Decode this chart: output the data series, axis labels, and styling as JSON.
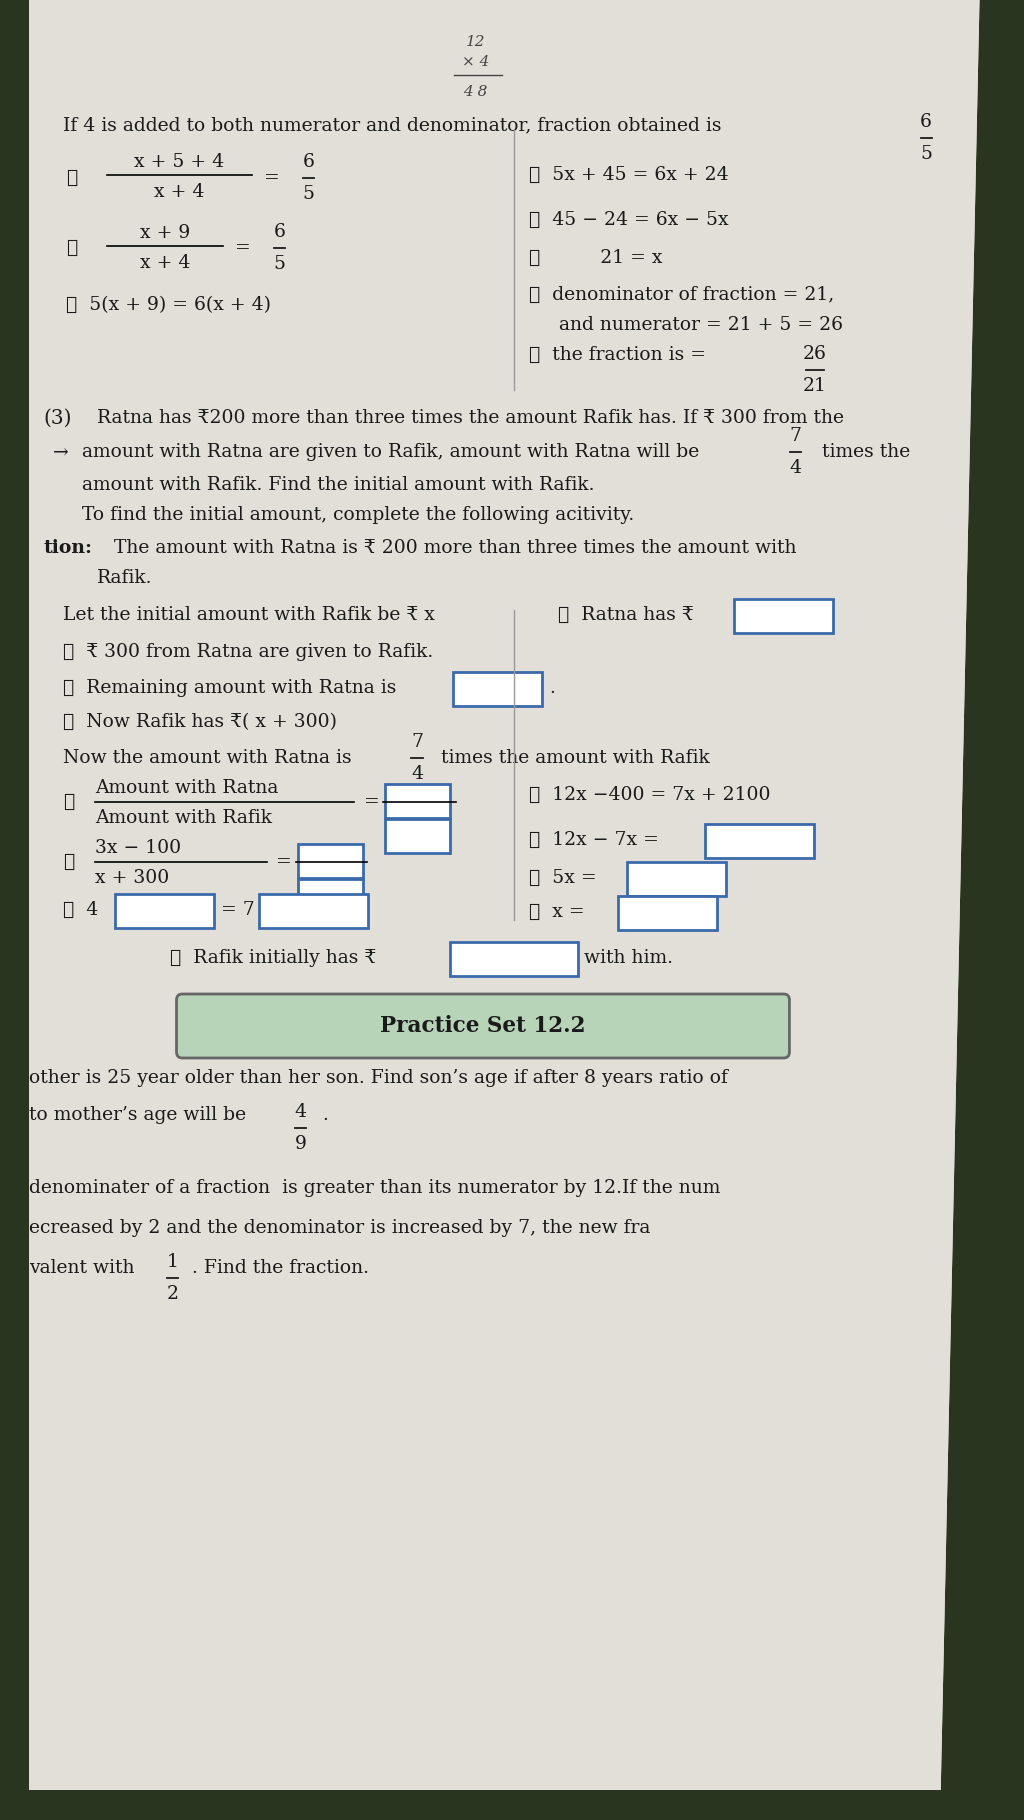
{
  "fig_w": 10.24,
  "fig_h": 18.2,
  "dpi": 100,
  "bg_dark": "#2a3520",
  "page_color": "#dddbd4",
  "page_color2": "#e8e6df",
  "text_color": "#1a1a1a",
  "box_edge_color": "#3a6aaa",
  "fs_main": 13.5,
  "fs_small": 11.5,
  "fs_hand": 11,
  "practice_bg": "#b8d4b8",
  "practice_edge": "#666666",
  "divider_color": "#888888",
  "hand_color": "#444444",
  "title_line": "If 4 is added to both numerator and denominator, fraction obtained is",
  "left_steps": {
    "step1_num": "x + 5 + 4",
    "step1_den": "x + 4",
    "step1_rhs_num": "6",
    "step1_rhs_den": "5",
    "step2_num": "x + 9",
    "step2_den": "x + 4",
    "step2_rhs_num": "6",
    "step2_rhs_den": "5",
    "step3": "∴  5(x + 9) = 6(x + 4)"
  },
  "right_steps": [
    "∴  5x + 45 = 6x + 24",
    "∴  45 − 24 = 6x − 5x",
    "∴          21 = x",
    "∴  denominator of fraction = 21,",
    "     and numerator = 21 + 5 = 26",
    "∴  the fraction is ="
  ],
  "frac_final_num": "26",
  "frac_final_den": "21",
  "sec3_line1": "(3) Ratna has ₹200 more than three times the amount Rafik has. If ₹ 300 from the",
  "sec3_line2": "amount with Ratna are given to Rafik, amount with Ratna will be",
  "sec3_frac_num": "7",
  "sec3_frac_den": "4",
  "sec3_line2b": "times the",
  "sec3_line3": "amount with Rafik. Find the initial amount with Rafik.",
  "sec3_line4": "To find the initial amount, complete the following acitivity.",
  "sec3_tion": "tion:",
  "sec3_line5": "The amount with Ratna is ₹ 200 more than three times the amount with",
  "sec3_line6": "Rafik.",
  "let_line": "Let the initial amount with Rafik be ₹ x",
  "ratna_has": "∴  Ratna has ₹",
  "rs300_line": "∴  ₹ 300 from Ratna are given to Rafik.",
  "remaining_line": "∴  Remaining amount with Ratna is",
  "now_rafik_line": "∴  Now Rafik has ₹( x + 300)",
  "now_amount_line1": "Now the amount with Ratna is",
  "now_frac_num": "7",
  "now_frac_den": "4",
  "now_amount_line2": "times the amount with Rafik",
  "amt_ratna": "Amount with Ratna",
  "amt_rafik": "Amount with Rafik",
  "eq_3x100_num": "3x − 100",
  "eq_3x100_den": "x + 300",
  "r_eq1": "∴  12x −400 = 7x + 2100",
  "r_eq2": "∴  12x − 7x =",
  "r_eq3": "∴  5x =",
  "r_eq4": "∴  x =",
  "therefore4": "∴  4",
  "eq7": "= 7",
  "rafik_initially": "∴  Rafik initially has ₹",
  "with_him": "with him.",
  "practice_set": "Practice Set 12.2",
  "b1": "other is 25 year older than her son. Find son’s age if after 8 years ratio of",
  "b2a": "to mother’s age will be",
  "b2_frac_num": "4",
  "b2_frac_den": "9",
  "b3": "denominater of a fraction  is greater than its numerator by 12.If the num",
  "b4": "ecreased by 2 and the denominator is increased by 7, the new fra",
  "b5a": "valent with",
  "b5_frac_num": "1",
  "b5_frac_den": "2",
  "b5b": ". Find the fraction."
}
